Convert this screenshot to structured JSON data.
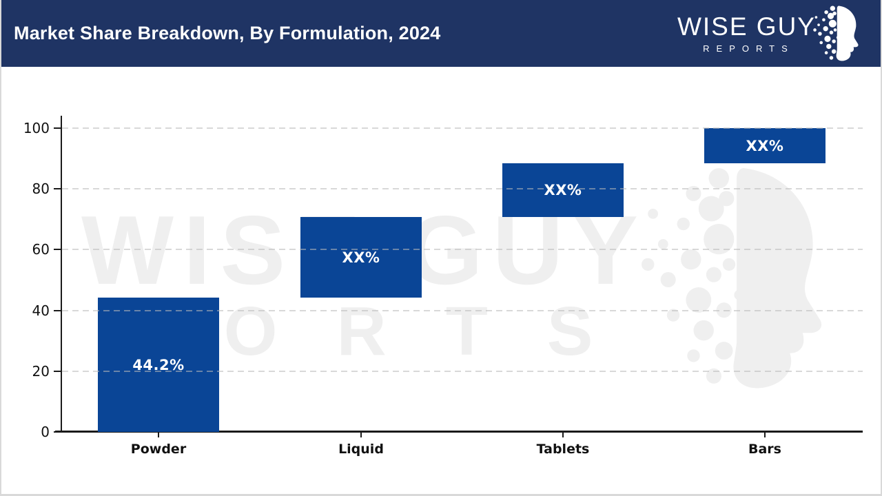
{
  "header": {
    "title": "Market Share Breakdown, By Formulation, 2024",
    "bg_color": "#1F3464",
    "logo": {
      "brand": "WISE GUY",
      "sub": "REPORTS"
    }
  },
  "watermark": {
    "line1": "WISE GUY",
    "line2": "PORTS"
  },
  "chart_data": {
    "type": "bar",
    "subtype": "stacked-waterfall-percentage",
    "title": "Market Share Breakdown, By Formulation, 2024",
    "categories": [
      "Powder",
      "Liquid",
      "Tablets",
      "Bars"
    ],
    "segments": [
      {
        "category": "Powder",
        "start": 0,
        "end": 44.2,
        "label": "44.2%"
      },
      {
        "category": "Liquid",
        "start": 44.2,
        "end": 70.7,
        "label": "XX%"
      },
      {
        "category": "Tablets",
        "start": 70.7,
        "end": 88.4,
        "label": "XX%"
      },
      {
        "category": "Bars",
        "start": 88.4,
        "end": 100,
        "label": "XX%"
      }
    ],
    "xlabel": "",
    "ylabel": "",
    "ylim": [
      0,
      100
    ],
    "yticks": [
      0,
      20,
      40,
      60,
      80,
      100
    ],
    "bar_color": "#0A4596",
    "grid": "horizontal-dashed",
    "gridline_color": "#c9c9c9",
    "legend": "none"
  }
}
